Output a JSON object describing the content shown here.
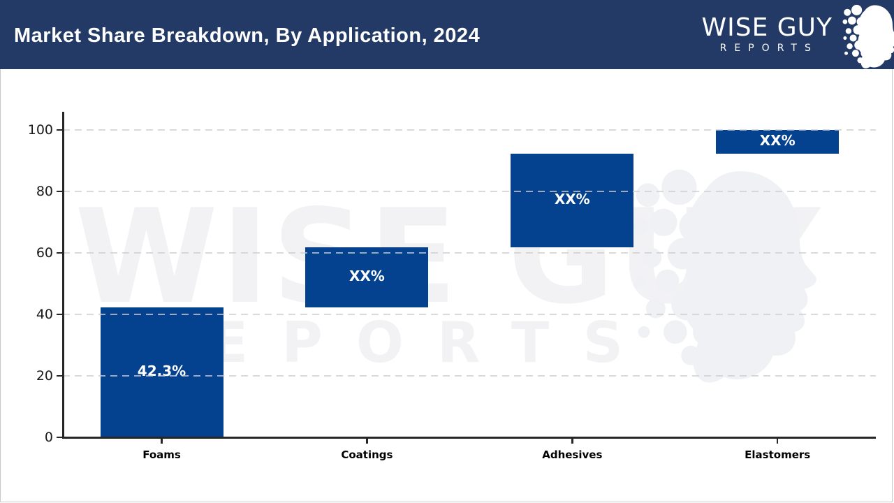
{
  "header": {
    "title": "Market Share Breakdown, By Application, 2024",
    "logo": {
      "line1": "WISE GUY",
      "line2": "REPORTS"
    }
  },
  "watermark": {
    "line1": "WISE GUY",
    "line2": "REPORTS"
  },
  "colors": {
    "header_bg": "#233a66",
    "title_text": "#ffffff",
    "bar": "#04418f",
    "bar_value_text": "#ffffff",
    "axis": "#262626",
    "grid": "#cecece",
    "watermark": "#f2f2f4",
    "category_text": "#000000",
    "tick_text": "#1a1a1a"
  },
  "chart_data": {
    "type": "bar",
    "subtype": "waterfall",
    "title": "Market Share Breakdown, By Application, 2024",
    "categories": [
      "Foams",
      "Coatings",
      "Adhesives",
      "Elastomers"
    ],
    "bars": [
      {
        "category": "Foams",
        "start": 0,
        "end": 42.3,
        "label": "42.3%"
      },
      {
        "category": "Coatings",
        "start": 42.3,
        "end": 61.8,
        "label": "XX%"
      },
      {
        "category": "Adhesives",
        "start": 61.8,
        "end": 92.3,
        "label": "XX%"
      },
      {
        "category": "Elastomers",
        "start": 92.3,
        "end": 100,
        "label": "XX%"
      }
    ],
    "yticks": [
      0,
      20,
      40,
      60,
      80,
      100
    ],
    "ylim": [
      0,
      106
    ],
    "xlabel": "",
    "ylabel": "",
    "grid": "horizontal-dashed",
    "legend": "none"
  }
}
